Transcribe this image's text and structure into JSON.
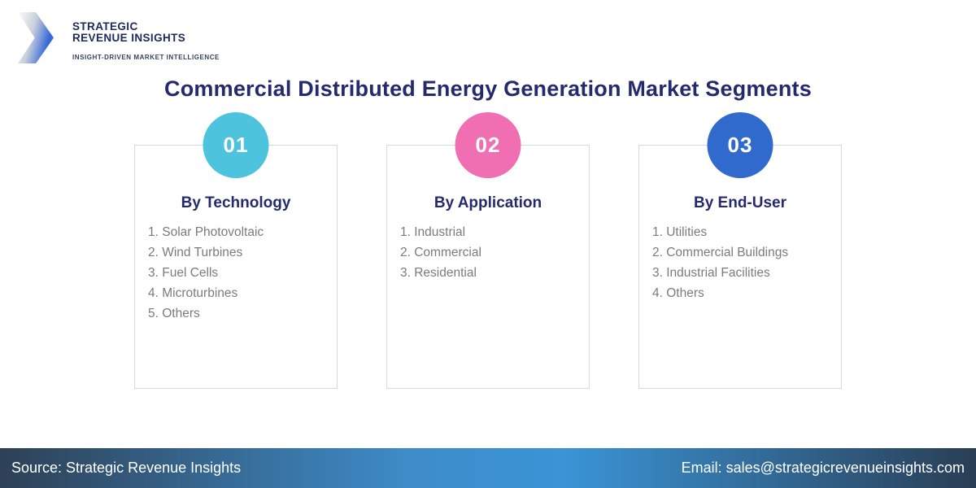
{
  "logo": {
    "line1": "STRATEGIC",
    "line2": "REVENUE INSIGHTS",
    "tagline": "INSIGHT-DRIVEN MARKET INTELLIGENCE"
  },
  "title": "Commercial Distributed Energy Generation Market Segments",
  "cards": [
    {
      "number": "01",
      "circle_color": "#4ec3de",
      "heading": "By Technology",
      "items": [
        "1. Solar Photovoltaic",
        "2. Wind Turbines",
        "3. Fuel Cells",
        "4. Microturbines",
        "5. Others"
      ]
    },
    {
      "number": "02",
      "circle_color": "#f06eb2",
      "heading": "By Application",
      "items": [
        "1. Industrial",
        "2. Commercial",
        "3. Residential"
      ]
    },
    {
      "number": "03",
      "circle_color": "#306acd",
      "heading": "By End-User",
      "items": [
        "1. Utilities",
        "2. Commercial Buildings",
        "3. Industrial Facilities",
        "4. Others"
      ]
    }
  ],
  "footer": {
    "source": "Source: Strategic Revenue Insights",
    "email": "Email: sales@strategicrevenueinsights.com"
  },
  "colors": {
    "title_navy": "#242a6c",
    "logo_navy": "#1e2a5e",
    "list_gray": "#7b7b7b",
    "card_border": "#d9d9d9",
    "circle_technology": "#4ec3de",
    "circle_application": "#f06eb2",
    "circle_end_user": "#306acd",
    "footer_gradient_left": "#2e4156",
    "footer_gradient_mid": "#3a94d6",
    "footer_gradient_right": "#2a3e55"
  }
}
